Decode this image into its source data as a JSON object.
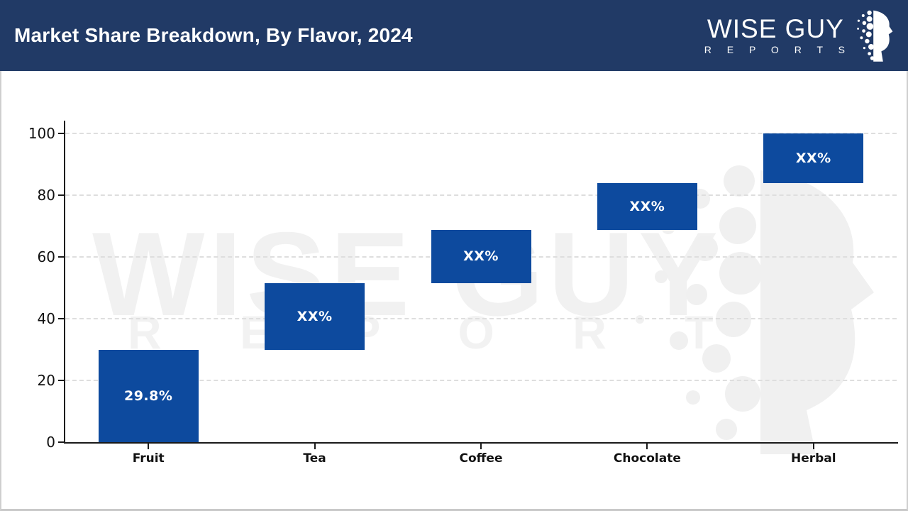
{
  "header": {
    "title": "Market Share Breakdown, By Flavor, 2024",
    "background_color": "#213a66",
    "logo": {
      "line1": "WISE GUY",
      "line2": "R E P O R T S"
    }
  },
  "watermark": {
    "line1": "WISE GUY",
    "line2": "R E P O R T S"
  },
  "chart_data": {
    "type": "bar",
    "subtype": "waterfall-floating-segments",
    "title": "Market Share Breakdown, By Flavor, 2024",
    "categories": [
      "Fruit",
      "Tea",
      "Coffee",
      "Chocolate",
      "Herbal"
    ],
    "segments": [
      {
        "category": "Fruit",
        "start": 0,
        "end": 29.8,
        "label": "29.8%"
      },
      {
        "category": "Tea",
        "start": 29.8,
        "end": 51.5,
        "label": "XX%"
      },
      {
        "category": "Coffee",
        "start": 51.5,
        "end": 68.8,
        "label": "XX%"
      },
      {
        "category": "Chocolate",
        "start": 68.8,
        "end": 83.8,
        "label": "XX%"
      },
      {
        "category": "Herbal",
        "start": 83.8,
        "end": 100,
        "label": "XX%"
      }
    ],
    "xlabel": "",
    "ylabel": "",
    "yticks": [
      0,
      20,
      40,
      60,
      80,
      100
    ],
    "ylim": [
      0,
      104
    ],
    "grid": "horizontal-dashed",
    "bar_color": "#0d4a9e",
    "bar_label_color": "#ffffff",
    "axis_color": "#1a1a1a"
  }
}
